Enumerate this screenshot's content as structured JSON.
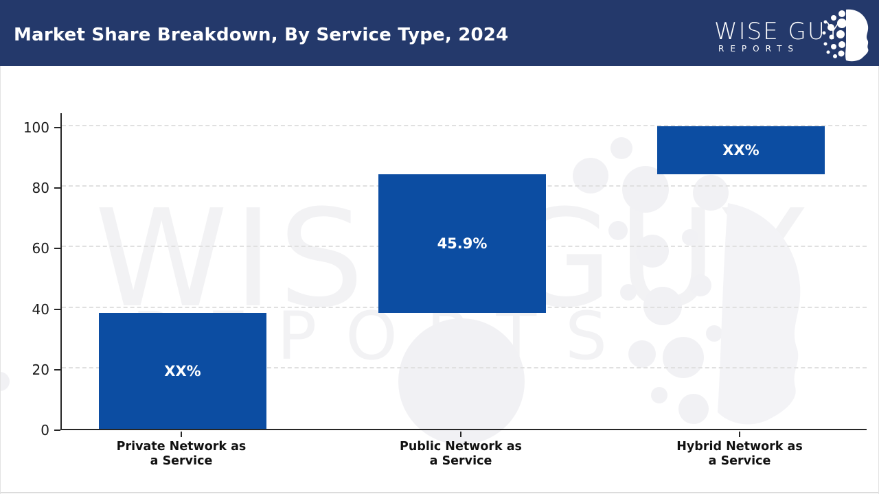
{
  "header": {
    "title": "Market Share Breakdown, By Service Type, 2024",
    "background_color": "#24396b",
    "logo": {
      "wordmark": "WISE GUY",
      "subtext": "REPORTS"
    }
  },
  "watermark": {
    "line1": "WISE GUY",
    "line2": "REPORTS"
  },
  "chart_data": {
    "type": "bar",
    "subtype": "waterfall-stacked",
    "title": "Market Share Breakdown, By Service Type, 2024",
    "categories": [
      "Private Network as a Service",
      "Public Network as a Service",
      "Hybrid Network as a Service"
    ],
    "category_lines": [
      [
        "Private Network as",
        "a Service"
      ],
      [
        "Public Network as",
        "a Service"
      ],
      [
        "Hybrid Network as",
        "a Service"
      ]
    ],
    "bars": [
      {
        "start": 0,
        "end": 38.3,
        "value": 38.3,
        "label": "XX%"
      },
      {
        "start": 38.3,
        "end": 84.2,
        "value": 45.9,
        "label": "45.9%"
      },
      {
        "start": 84.2,
        "end": 100,
        "value": 15.8,
        "label": "XX%"
      }
    ],
    "yticks": [
      0,
      20,
      40,
      60,
      80,
      100
    ],
    "ylim": [
      0,
      105
    ],
    "xlabel": "",
    "ylabel": "",
    "bar_color": "#0c4da2",
    "grid": "horizontal-dashed",
    "legend": "none"
  }
}
